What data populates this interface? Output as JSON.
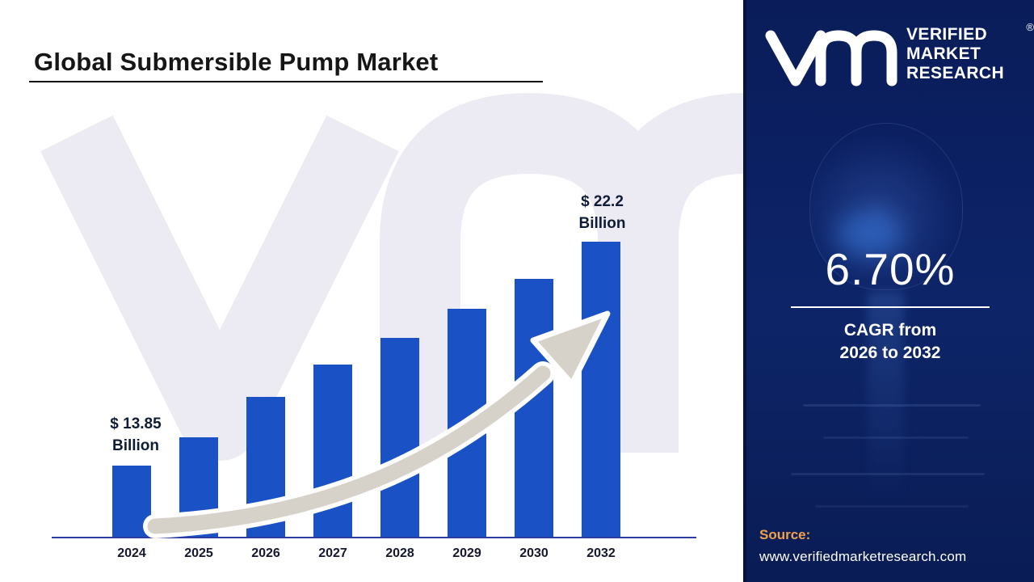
{
  "page": {
    "title": "Global Submersible Pump Market"
  },
  "chart_data": {
    "type": "bar",
    "title": "Global Submersible Pump Market",
    "categories": [
      "2024",
      "2025",
      "2026",
      "2027",
      "2028",
      "2029",
      "2030",
      "2032"
    ],
    "values": [
      13.85,
      14.9,
      16.4,
      17.6,
      18.6,
      19.7,
      20.8,
      22.2
    ],
    "xlabel": "",
    "ylabel": "",
    "ylim": [
      11.5,
      23
    ],
    "grid": false,
    "legend": "none",
    "annotations": {
      "first_bar": {
        "value": "$ 13.85",
        "unit": "Billion"
      },
      "last_bar": {
        "value": "$ 22.2",
        "unit": "Billion"
      }
    }
  },
  "sidebar": {
    "logo": {
      "lines": [
        "VERIFIED",
        "MARKET",
        "RESEARCH"
      ],
      "registered": "®"
    },
    "cagr": {
      "value": "6.70%",
      "caption_line1": "CAGR from",
      "caption_line2": "2026 to 2032"
    },
    "source": {
      "label": "Source:",
      "url": "www.verifiedmarketresearch.com"
    }
  },
  "colors": {
    "bar": "#1a52c6",
    "arrow": "#d6d2ca",
    "watermark": "#ecebf4",
    "sidebar": "#0b2063",
    "source_label": "#f0a24b"
  }
}
